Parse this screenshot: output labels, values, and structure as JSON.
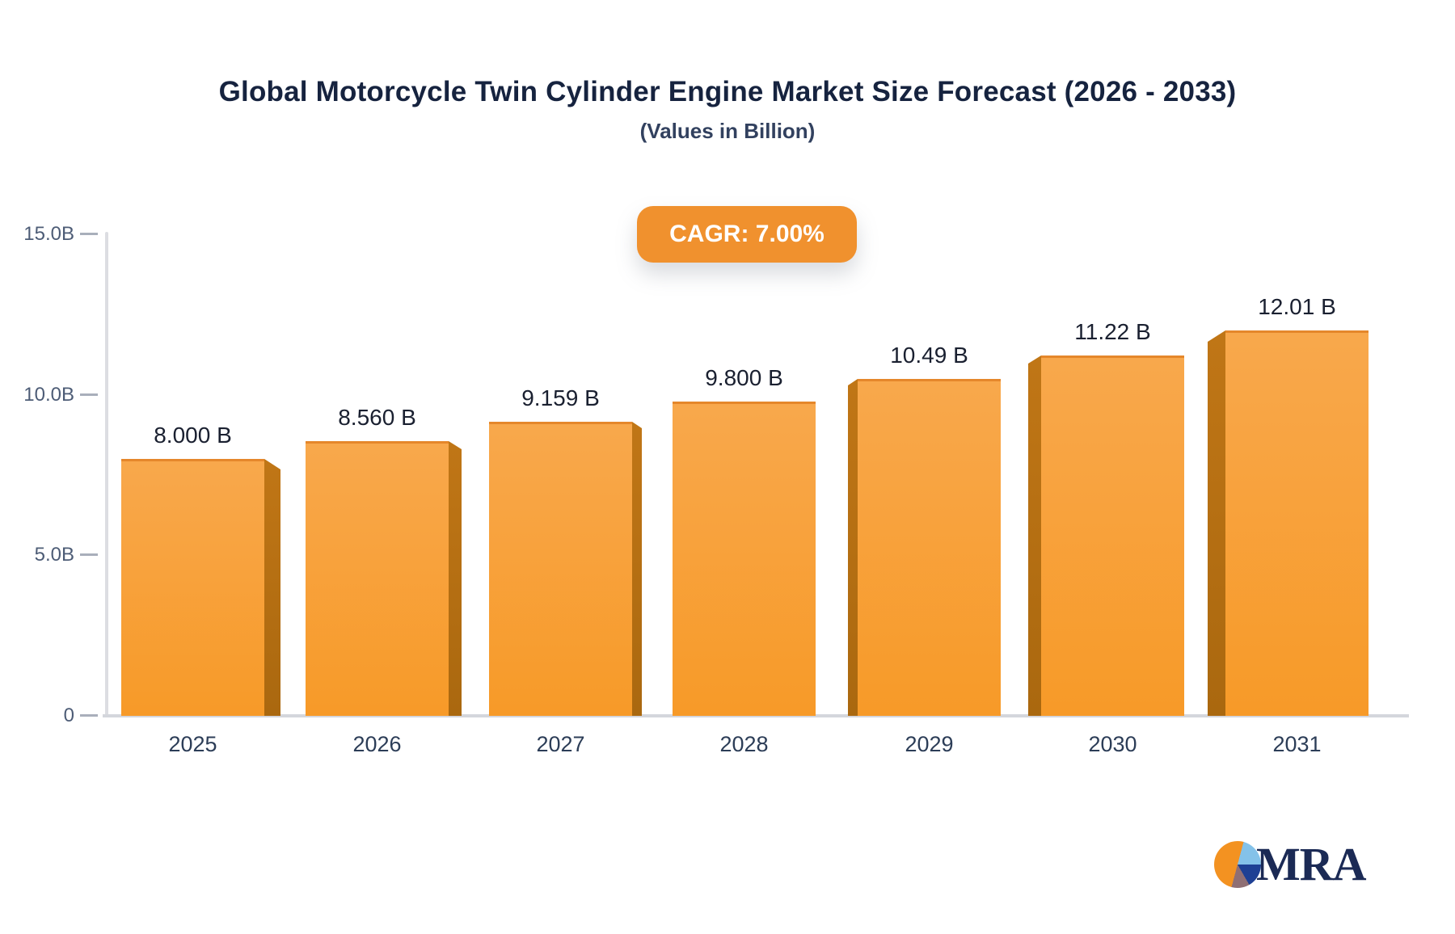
{
  "title": "Global Motorcycle Twin Cylinder Engine Market Size Forecast (2026 - 2033)",
  "subtitle": "(Values in Billion)",
  "badge": {
    "label": "CAGR: 7.00%",
    "color": "#f0912e"
  },
  "chart_data": {
    "type": "bar",
    "categories": [
      "2025",
      "2026",
      "2027",
      "2028",
      "2029",
      "2030",
      "2031"
    ],
    "values": [
      8.0,
      8.56,
      9.159,
      9.8,
      10.49,
      11.22,
      12.01
    ],
    "bar_labels": [
      "8.000 B",
      "8.560 B",
      "9.159 B",
      "9.800 B",
      "10.49 B",
      "11.22 B",
      "12.01 B"
    ],
    "title": "Global Motorcycle Twin Cylinder Engine Market Size Forecast (2026 - 2033)",
    "xlabel": "",
    "ylabel": "",
    "ylim": [
      0,
      15
    ],
    "yticks": [
      {
        "value": 15,
        "label": "15.0B"
      },
      {
        "value": 10,
        "label": "10.0B"
      },
      {
        "value": 5,
        "label": "5.0B"
      },
      {
        "value": 0,
        "label": "0"
      }
    ],
    "grid": false,
    "legend": false,
    "style": "3d-bars",
    "bar_color_top": "#f8a84c",
    "bar_color_bottom": "#f79a28",
    "bar_top_edge_color": "#e5872b",
    "bar_side_color_light": "#c07616",
    "bar_side_color_dark": "#aa680f",
    "axis_line_color": "#dcdde2",
    "baseline_color": "#d4d6dc"
  },
  "logo": {
    "text": "MRA",
    "pie_colors": {
      "orange": "#f39221",
      "light_blue": "#84c2e9",
      "navy": "#1e4094",
      "maroon": "#8f6f74"
    }
  }
}
